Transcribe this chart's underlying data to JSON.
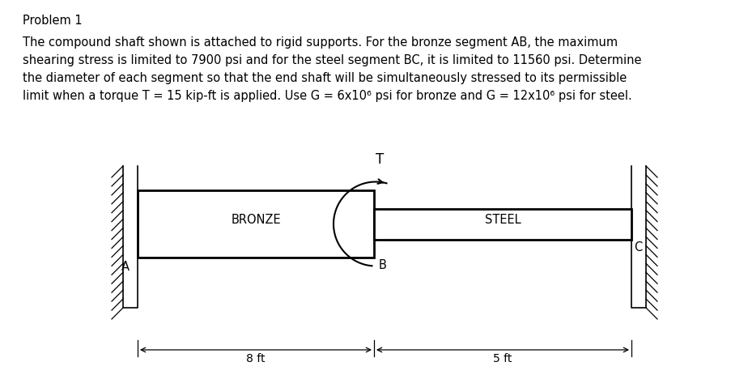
{
  "title": "Problem 1",
  "problem_text_lines": [
    "The compound shaft shown is attached to rigid supports. For the bronze segment AB, the maximum",
    "shearing stress is limited to 7900 psi and for the steel segment BC, it is limited to 11560 psi. Determine",
    "the diameter of each segment so that the end shaft will be simultaneously stressed to its permissible",
    "limit when a torque T = 15 kip-ft is applied. Use G = 6x10⁶ psi for bronze and G = 12x10⁶ psi for steel."
  ],
  "background_color": "#ffffff",
  "text_color": "#000000",
  "bronze_label": "BRONZE",
  "steel_label": "STEEL",
  "point_A": "A",
  "point_B": "B",
  "point_C": "C",
  "torque_label": "T",
  "dim_bronze": "8 ft",
  "dim_steel": "5 ft",
  "title_fontsize": 10.5,
  "body_fontsize": 10.5,
  "diagram_fontsize": 10.5
}
